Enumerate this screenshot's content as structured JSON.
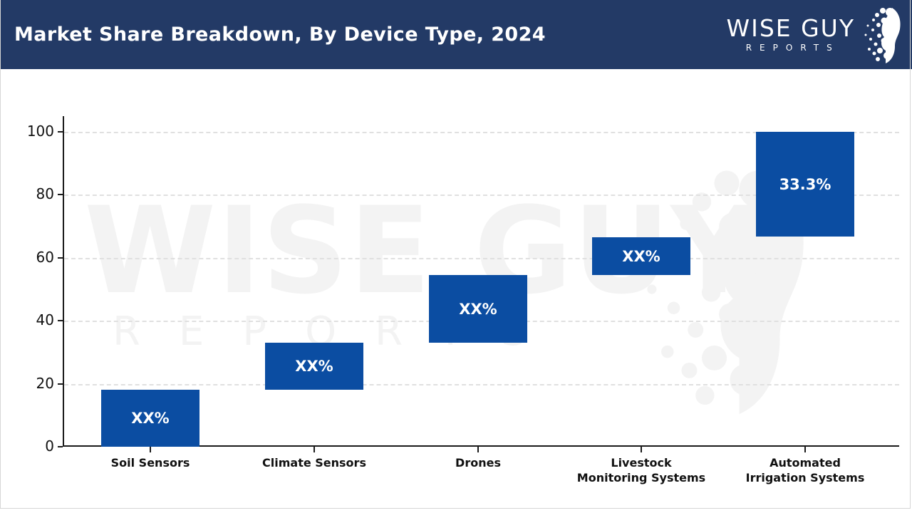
{
  "header": {
    "title": "Market Share Breakdown, By Device Type, 2024",
    "logo": {
      "line1": "WISE GUY",
      "line2": "REPORTS"
    }
  },
  "watermark": {
    "line1": "WISE GUY",
    "line2": "REPORTS"
  },
  "chart_data": {
    "type": "bar",
    "variant": "waterfall",
    "title": "Market Share Breakdown, By Device Type, 2024",
    "categories": [
      [
        "Soil Sensors"
      ],
      [
        "Climate Sensors"
      ],
      [
        "Drones"
      ],
      [
        "Livestock",
        "Monitoring Systems"
      ],
      [
        "Automated",
        "Irrigation Systems"
      ]
    ],
    "segments": [
      {
        "category": "Soil Sensors",
        "start": 0,
        "end": 18,
        "label": "XX%"
      },
      {
        "category": "Climate Sensors",
        "start": 18,
        "end": 33,
        "label": "XX%"
      },
      {
        "category": "Drones",
        "start": 33,
        "end": 54.5,
        "label": "XX%"
      },
      {
        "category": "Livestock Monitoring Systems",
        "start": 54.5,
        "end": 66.5,
        "label": "XX%"
      },
      {
        "category": "Automated Irrigation Systems",
        "start": 66.7,
        "end": 100,
        "label": "33.3%"
      }
    ],
    "ylim": [
      0,
      100
    ],
    "yticks": [
      0,
      20,
      40,
      60,
      80,
      100
    ],
    "xlabel": "",
    "ylabel": "",
    "grid": "horizontal-dashed",
    "legend": "none",
    "colors": {
      "bar": "#0b4da2",
      "bar_label": "#ffffff",
      "header_bg": "#233a66",
      "grid": "#e0e0e0",
      "axis": "#1a1a1a",
      "watermark": "#f3f3f3"
    }
  }
}
